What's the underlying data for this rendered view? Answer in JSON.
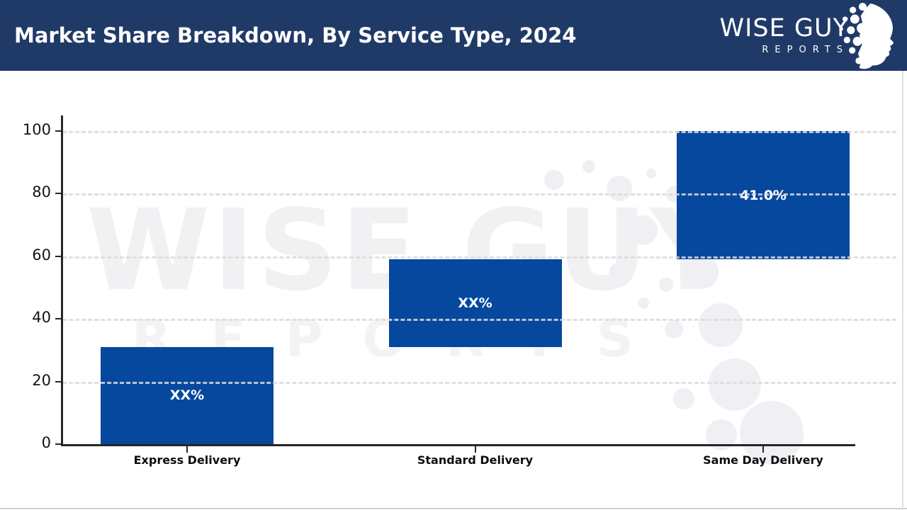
{
  "header": {
    "title": "Market Share Breakdown, By Service Type, 2024",
    "background_color": "#203a68",
    "logo": {
      "line1": "WISE GUY",
      "line2": "REPORTS"
    }
  },
  "watermark": {
    "line1": "WISE GUY",
    "line2": "REPORTS"
  },
  "chart_data": {
    "type": "bar",
    "subtype": "waterfall-stacked-percentage",
    "title": "Market Share Breakdown, By Service Type, 2024",
    "categories": [
      "Express Delivery",
      "Standard Delivery",
      "Same Day Delivery"
    ],
    "bars": [
      {
        "category": "Express Delivery",
        "start": 0,
        "end": 31,
        "value": 31,
        "label": "XX%"
      },
      {
        "category": "Standard Delivery",
        "start": 31,
        "end": 59,
        "value": 28,
        "label": "XX%"
      },
      {
        "category": "Same Day Delivery",
        "start": 59,
        "end": 100,
        "value": 41,
        "label": "41.0%"
      }
    ],
    "ylim": [
      0,
      100
    ],
    "yticks": [
      0,
      20,
      40,
      60,
      80,
      100
    ],
    "xlabel": "",
    "ylabel": "",
    "grid": "horizontal-dashed",
    "legend": "none",
    "bar_color": "#06489e",
    "bar_label_color": "#ffffff",
    "axis_color": "#262626",
    "gridline_color": "#dbdbdb"
  }
}
